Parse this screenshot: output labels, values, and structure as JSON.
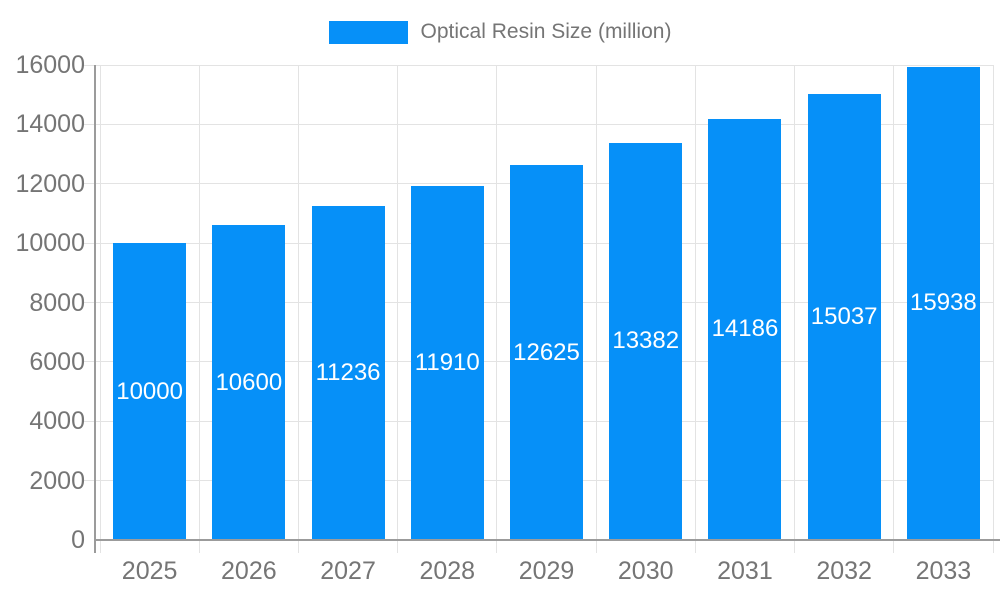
{
  "legend": {
    "label": "Optical Resin Size (million)"
  },
  "chart_data": {
    "type": "bar",
    "title": "Optical Resin Size (million)",
    "series": [
      {
        "name": "Optical Resin Size (million)",
        "values": [
          10000,
          10600,
          11236,
          11910,
          12625,
          13382,
          14186,
          15037,
          15938
        ]
      }
    ],
    "categories": [
      "2025",
      "2026",
      "2027",
      "2028",
      "2029",
      "2030",
      "2031",
      "2032",
      "2033"
    ],
    "bar_labels": [
      "10000",
      "10600",
      "11236",
      "11910",
      "12625",
      "13382",
      "14186",
      "15037",
      "15938"
    ],
    "xlabel": "",
    "ylabel": "",
    "ylim": [
      0,
      16000
    ],
    "yticks": [
      0,
      2000,
      4000,
      6000,
      8000,
      10000,
      12000,
      14000,
      16000
    ],
    "grid": "on",
    "legend_position": "top-center"
  },
  "colors": {
    "bar": "#0690f8",
    "grid": "#e3e3e3",
    "axis": "#9b9b9b",
    "label": "#757575",
    "value_label": "#ffffff",
    "background": "#ffffff"
  }
}
